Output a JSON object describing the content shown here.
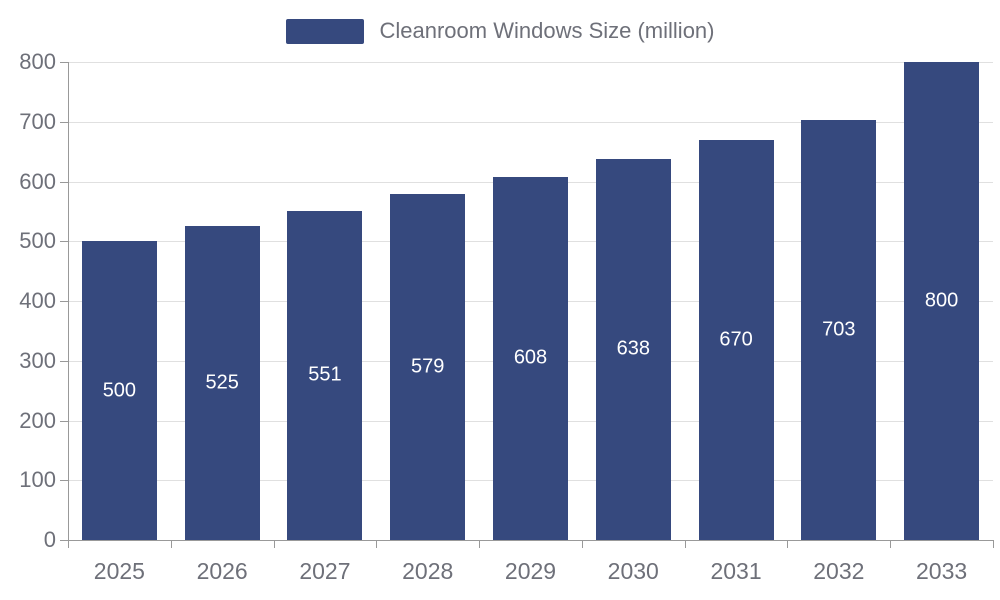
{
  "legend": {
    "label": "Cleanroom Windows Size (million)"
  },
  "chart_data": {
    "type": "bar",
    "title": "Cleanroom Windows Size (million)",
    "categories": [
      "2025",
      "2026",
      "2027",
      "2028",
      "2029",
      "2030",
      "2031",
      "2032",
      "2033"
    ],
    "values": [
      500,
      525,
      551,
      579,
      608,
      638,
      670,
      703,
      800
    ],
    "value_labels": [
      "500",
      "525",
      "551",
      "579",
      "608",
      "638",
      "670",
      "703",
      "800"
    ],
    "xlabel": "",
    "ylabel": "",
    "ylim": [
      0,
      800
    ],
    "yticks": [
      0,
      100,
      200,
      300,
      400,
      500,
      600,
      700,
      800
    ],
    "grid": true,
    "legend_position": "top-center",
    "colors": {
      "bar": "#36497E",
      "value_label": "#FFFFFF",
      "grid": "#E0E0E0",
      "axis": "#999999",
      "tick_label": "#6E7079"
    }
  }
}
